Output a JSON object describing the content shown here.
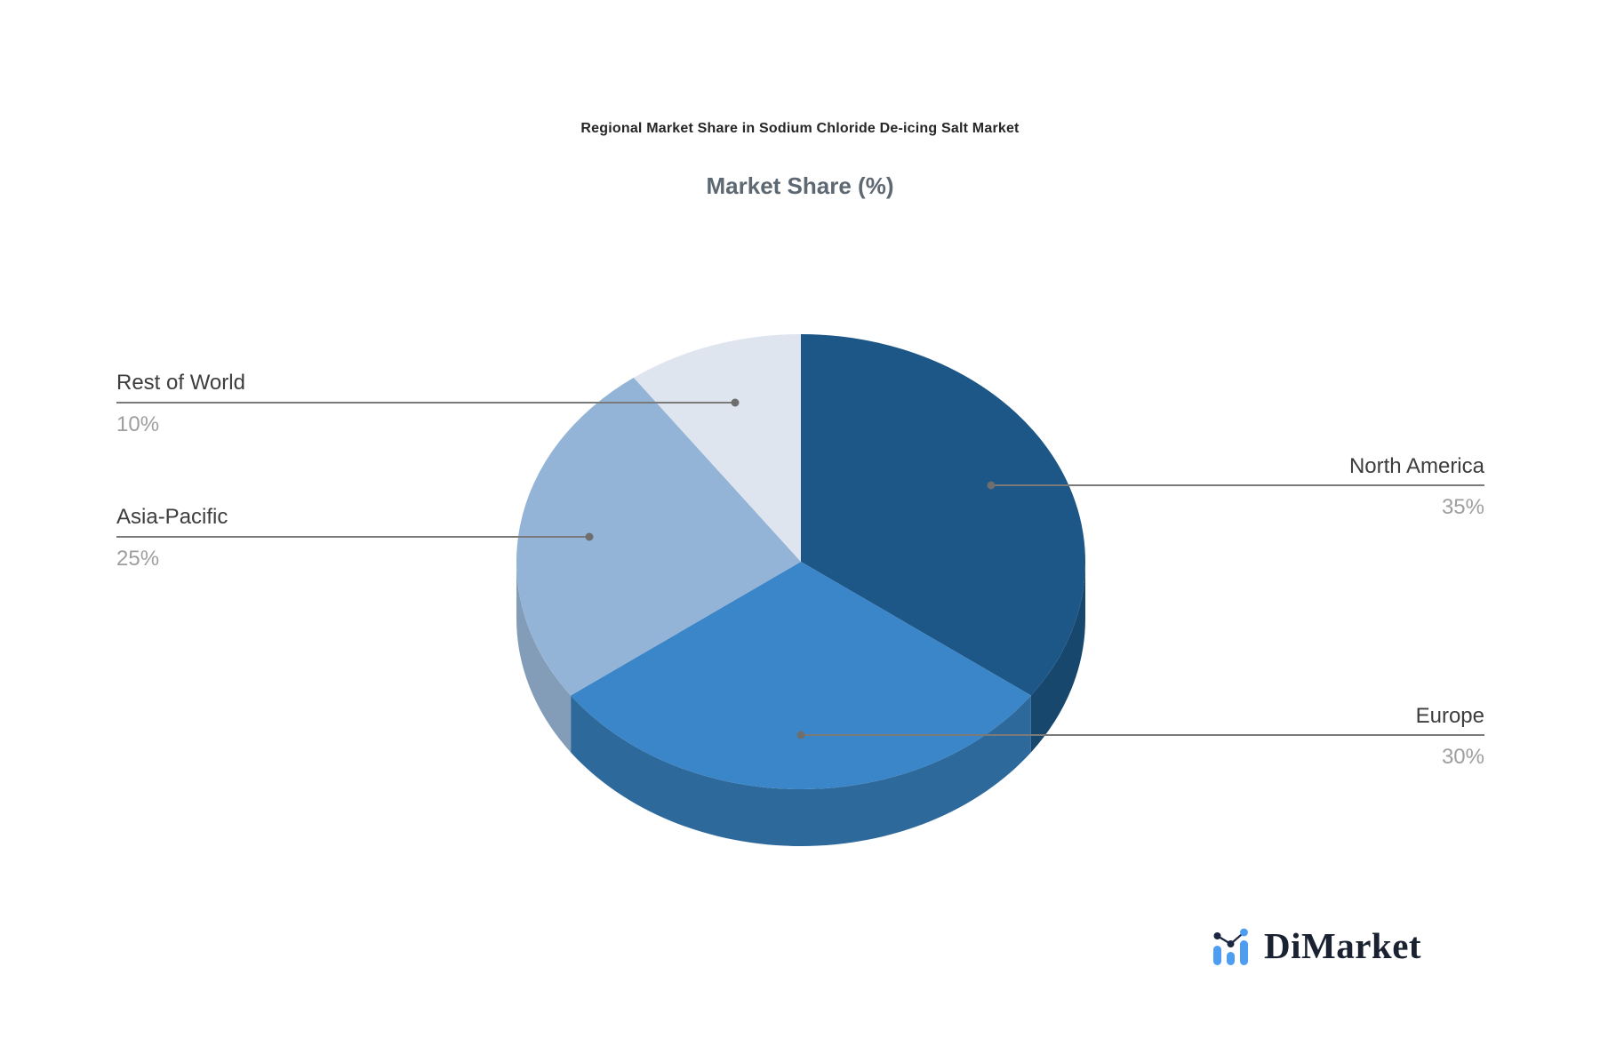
{
  "title": "Regional Market Share in Sodium Chloride De-icing Salt Market",
  "subtitle": "Market Share (%)",
  "brand": {
    "name": "DiMarket",
    "icon": "bar-line-chart-icon",
    "bar_color": "#4d9df0",
    "dot_line_color": "#1b2740",
    "text_color": "#1a2232"
  },
  "callout_style": {
    "line_color": "#7a7a7a",
    "dot_color": "#6e6e6e",
    "label_color": "#3d3d3d",
    "value_color": "#9e9e9e"
  },
  "chart_data": {
    "type": "pie",
    "effect": "3d",
    "title": "Regional Market Share in Sodium Chloride De-icing Salt Market",
    "subtitle": "Market Share (%)",
    "unit": "%",
    "start_angle_deg": 0,
    "direction": "clockwise",
    "legend_position": "callouts",
    "slices": [
      {
        "label": "North America",
        "value": 35,
        "pct_label": "35%",
        "color": "#1d5787",
        "side_color": "#18476e"
      },
      {
        "label": "Europe",
        "value": 30,
        "pct_label": "30%",
        "color": "#3b86c8",
        "side_color": "#2e699c"
      },
      {
        "label": "Asia-Pacific",
        "value": 25,
        "pct_label": "25%",
        "color": "#93b4d7",
        "side_color": "#839db9"
      },
      {
        "label": "Rest of World",
        "value": 10,
        "pct_label": "10%",
        "color": "#dfe5ef",
        "side_color": "#c9d3e2"
      }
    ]
  }
}
